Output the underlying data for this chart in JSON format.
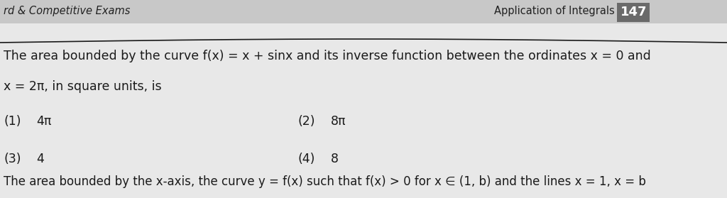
{
  "bg_color": "#e8e8e8",
  "bg_color_top": "#c8c8c8",
  "header_left_text": "rd & Competitive Exams",
  "header_right_text": "Application of Integrals",
  "page_number": "147",
  "page_number_bg": "#6a6a6a",
  "question_text_line1": "The area bounded by the curve f(x) = x + sinx and its inverse function between the ordinates x = 0 and",
  "question_text_line2": "x = 2π, in square units, is",
  "opt1_num": "(1)",
  "opt1_val": "4π",
  "opt2_num": "(2)",
  "opt2_val": "8π",
  "opt3_num": "(3)",
  "opt3_val": "4",
  "opt4_num": "(4)",
  "opt4_val": "8",
  "bottom_text": "The area bounded by the x-axis, the curve y = f(x) such that f(x) > 0 for x ∈ (1, b) and the lines x = 1, x = b",
  "font_size_header": 10.5,
  "font_size_body": 12.5,
  "font_size_options": 12.5,
  "font_size_page": 13,
  "text_color": "#1a1a1a",
  "header_color": "#222222"
}
